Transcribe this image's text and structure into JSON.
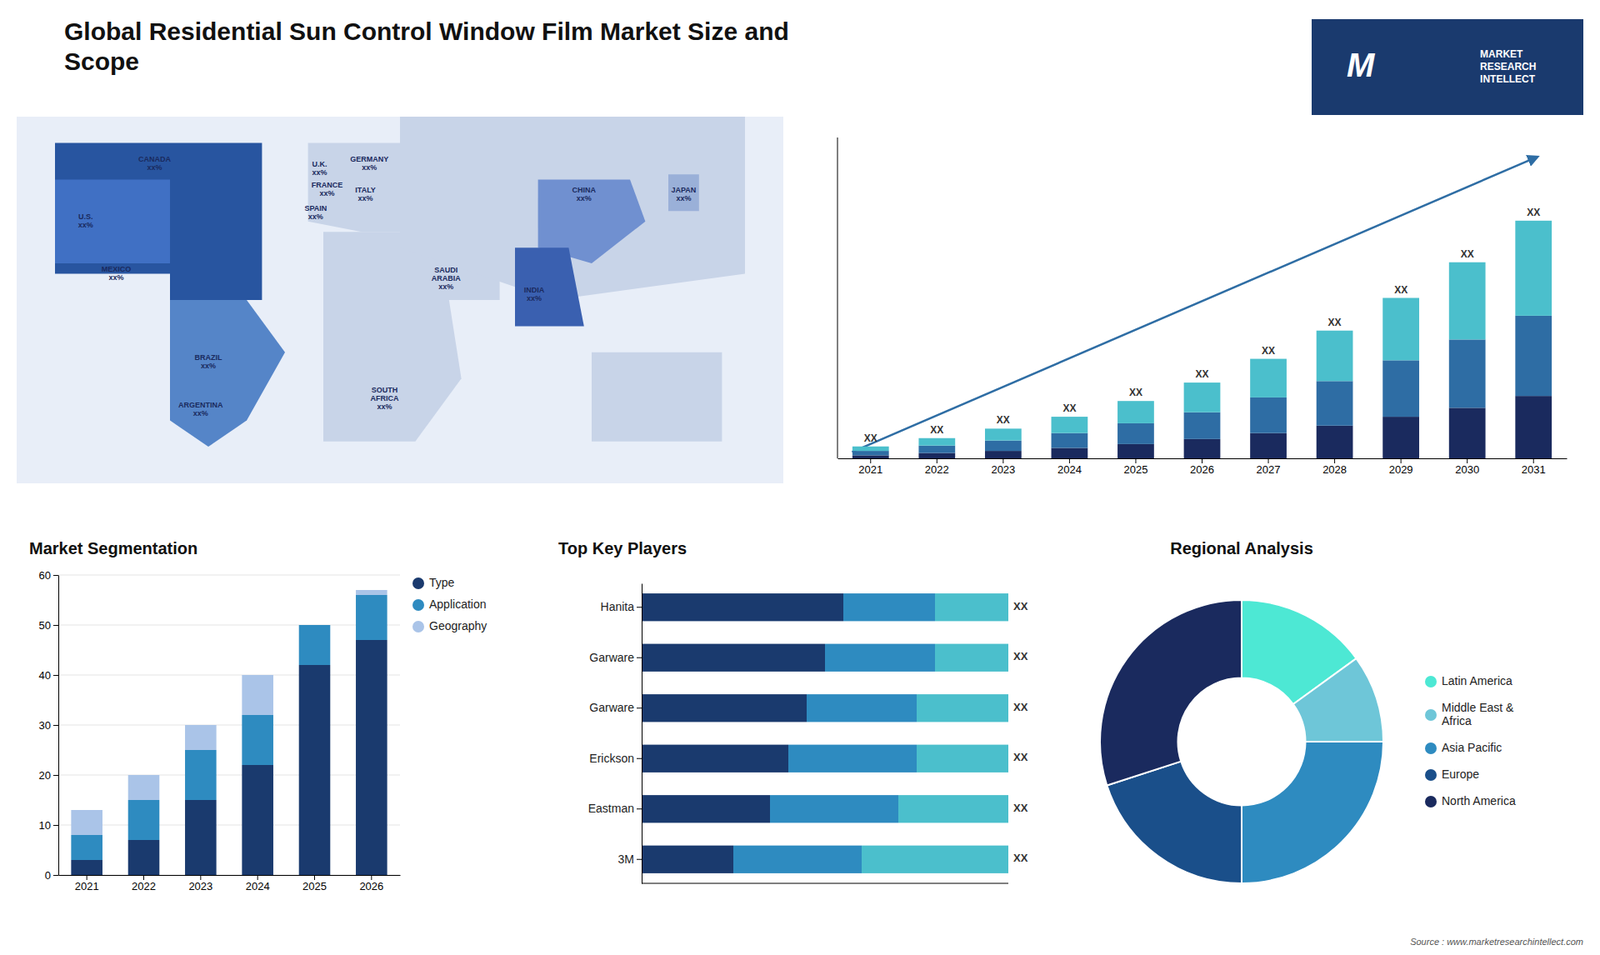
{
  "title": "Global Residential Sun Control Window Film Market Size and\nScope",
  "annotations": [
    "M",
    "MARKET\nRESEARCH\nINTELLECT",
    "Source : www.marketresearchintellect.com"
  ],
  "chart_data": [
    {
      "type": "map",
      "annotations": [
        "CANADA\nxx%",
        "U.S.\nxx%",
        "MEXICO\nxx%",
        "BRAZIL\nxx%",
        "ARGENTINA\nxx%",
        "U.K.\nxx%",
        "FRANCE\nxx%",
        "SPAIN\nxx%",
        "GERMANY\nxx%",
        "ITALY\nxx%",
        "SAUDI\nARABIA\nxx%",
        "SOUTH\nAFRICA\nxx%",
        "CHINA\nxx%",
        "INDIA\nxx%",
        "JAPAN\nxx%"
      ],
      "colors": [
        "#2855a0",
        "#5585c8",
        "#c8d4e8",
        "#c8d4e8",
        "#c8d4e8",
        "#c8d4e8",
        "#c8d4e8",
        "#4070c4",
        "#7090d0",
        "#3a60b0",
        "#9ab0d8"
      ]
    },
    {
      "type": "bar",
      "stacked": true,
      "categories": [
        "2021",
        "2022",
        "2023",
        "2024",
        "2025",
        "2026",
        "2027",
        "2028",
        "2029",
        "2030",
        "2031"
      ],
      "series": [
        {
          "color": "#1a2a5e",
          "values": [
            1,
            1.8,
            2.5,
            3.5,
            4.8,
            6.5,
            8.5,
            11,
            14,
            17,
            21
          ]
        },
        {
          "color": "#2e6da4",
          "values": [
            1.5,
            2.5,
            3.5,
            5,
            7,
            9,
            12,
            15,
            19,
            23,
            27
          ]
        },
        {
          "color": "#4bbfcc",
          "values": [
            1.5,
            2.5,
            4,
            5.5,
            7.5,
            10,
            13,
            17,
            21,
            26,
            32
          ]
        }
      ],
      "ylim": [
        0,
        108
      ],
      "tick_labels": "x",
      "annotations": [
        "XX",
        "XX",
        "XX",
        "XX",
        "XX",
        "XX",
        "XX",
        "XX",
        "XX",
        "XX",
        "XX"
      ]
    },
    {
      "type": "bar",
      "stacked": true,
      "title": "Market Segmentation",
      "categories": [
        "2021",
        "2022",
        "2023",
        "2024",
        "2025",
        "2026"
      ],
      "series": [
        {
          "name": "Type",
          "color": "#1a3a6e",
          "values": [
            3,
            7,
            15,
            22,
            42,
            47
          ]
        },
        {
          "name": "Application",
          "color": "#2e8bc0",
          "values": [
            5,
            8,
            10,
            10,
            8,
            9
          ]
        },
        {
          "name": "Geography",
          "color": "#aac4e8",
          "values": [
            5,
            5,
            5,
            8,
            0,
            1
          ]
        }
      ],
      "ylim": [
        0,
        60
      ],
      "yticks": [
        0,
        10,
        20,
        30,
        40,
        50,
        60
      ],
      "grid": true,
      "legend": "upper right"
    },
    {
      "type": "bar",
      "orientation": "horizontal",
      "stacked": true,
      "title": "Top Key Players",
      "categories": [
        "Hanita",
        "Garware",
        "Garware",
        "Erickson",
        "Eastman",
        "3M"
      ],
      "series": [
        {
          "color": "#1a3a6e",
          "values": [
            0.55,
            0.5,
            0.45,
            0.4,
            0.35,
            0.25
          ]
        },
        {
          "color": "#2e8bc0",
          "values": [
            0.25,
            0.3,
            0.3,
            0.35,
            0.35,
            0.35
          ]
        },
        {
          "color": "#4bbfcc",
          "values": [
            0.2,
            0.2,
            0.25,
            0.25,
            0.3,
            0.4
          ]
        }
      ],
      "xlim": [
        0,
        1
      ],
      "tick_labels": "y",
      "annotations": [
        "XX",
        "XX",
        "XX",
        "XX",
        "XX",
        "XX"
      ]
    },
    {
      "type": "pie",
      "title": "Regional Analysis",
      "categories": [
        "Latin America",
        "Middle East &\nAfrica",
        "Asia Pacific",
        "Europe",
        "North America"
      ],
      "values": [
        15,
        10,
        25,
        20,
        30
      ],
      "colors": [
        "#4de8d4",
        "#6ec6d8",
        "#2e8bc0",
        "#1a4f8a",
        "#1a2a5e"
      ],
      "legend": "right"
    }
  ]
}
